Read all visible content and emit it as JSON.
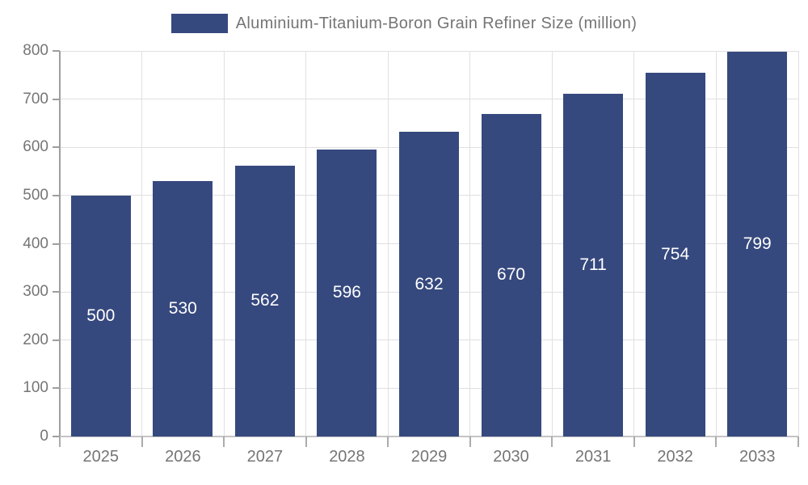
{
  "legend": {
    "label": "Aluminium-Titanium-Boron Grain Refiner Size (million)"
  },
  "colors": {
    "bar": "#36497e",
    "bar_label_text": "#ffffff",
    "axis_text": "#757575",
    "grid_line": "#e0e0e0",
    "y_axis_line": "#9e9e9e",
    "x_axis_line": "#c4c4c4",
    "x_tick": "#ababab",
    "background": "#ffffff"
  },
  "chart_data": {
    "type": "bar",
    "title": "Aluminium-Titanium-Boron Grain Refiner Size (million)",
    "categories": [
      "2025",
      "2026",
      "2027",
      "2028",
      "2029",
      "2030",
      "2031",
      "2032",
      "2033"
    ],
    "values": [
      500,
      530,
      562,
      596,
      632,
      670,
      711,
      754,
      799
    ],
    "xlabel": "",
    "ylabel": "",
    "ylim": [
      0,
      800
    ],
    "yticks": [
      0,
      100,
      200,
      300,
      400,
      500,
      600,
      700,
      800
    ],
    "grid": true,
    "legend_position": "top-center",
    "value_labels": "inside-center-white"
  }
}
